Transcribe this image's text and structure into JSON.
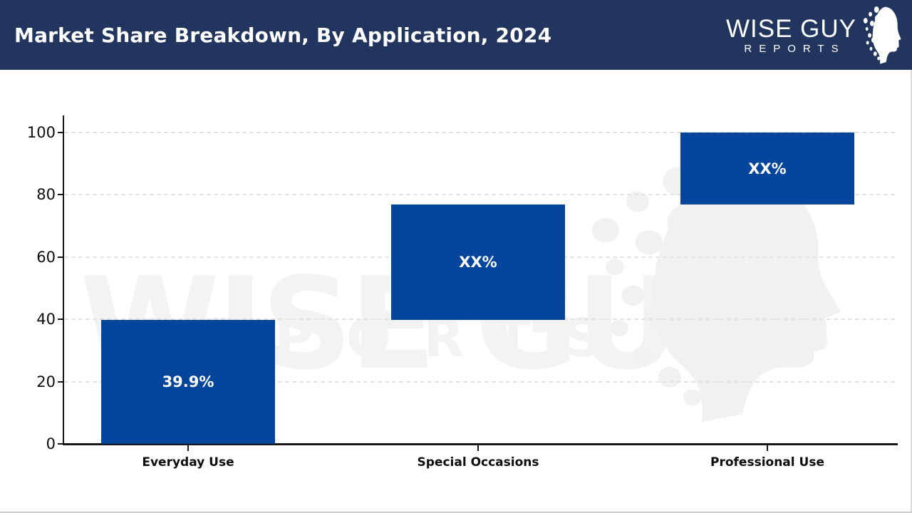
{
  "header": {
    "title": "Market Share Breakdown, By Application, 2024",
    "logo": {
      "line1": "WISE GUY",
      "line2": "REPORTS"
    }
  },
  "watermark": {
    "line1": "WISE GUY",
    "line2": "REPORTS"
  },
  "colors": {
    "header_bg": "#21355f",
    "bar": "#05459c",
    "grid": "#e3e3e3",
    "axis": "#161616",
    "watermark": "#f3f3f4",
    "bar_label": "#ffffff",
    "title_text": "#ffffff"
  },
  "chart_data": {
    "type": "bar",
    "subtype": "floating-waterfall",
    "title": "Market Share Breakdown, By Application, 2024",
    "categories": [
      "Everyday Use",
      "Special Occasions",
      "Professional Use"
    ],
    "segments": [
      {
        "category": "Everyday Use",
        "start": 0,
        "end": 39.9,
        "label": "39.9%"
      },
      {
        "category": "Special Occasions",
        "start": 39.9,
        "end": 76.8,
        "label": "XX%"
      },
      {
        "category": "Professional Use",
        "start": 76.8,
        "end": 100,
        "label": "XX%"
      }
    ],
    "xlabel": "",
    "ylabel": "",
    "yticks": [
      0,
      20,
      40,
      60,
      80,
      100
    ],
    "ylim": [
      0,
      100
    ],
    "grid": "horizontal-dashed",
    "legend": "none",
    "values_are_percent": true
  }
}
